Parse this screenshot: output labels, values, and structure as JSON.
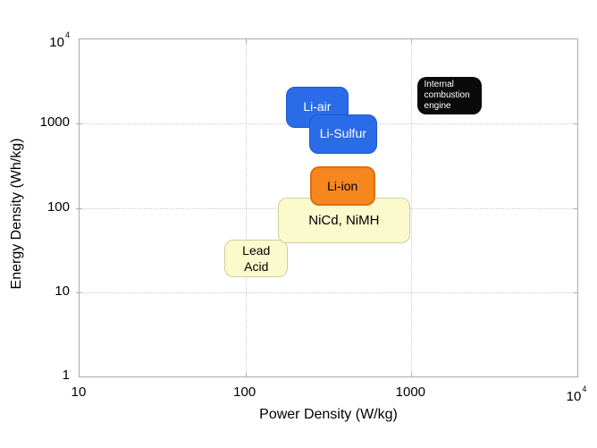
{
  "figure": {
    "background": "#ffffff",
    "axis_color": "#ababab",
    "grid_color": "#cbcbcb",
    "text_color": "#000000"
  },
  "chart_data": {
    "type": "scatter",
    "subtype": "labeled-region-boxes (Ragone plot)",
    "title": "",
    "xlabel": "Power Density (W/kg)",
    "ylabel": "Energy Density (Wh/kg)",
    "x_scale": "log",
    "y_scale": "log",
    "xlim": [
      10,
      10000
    ],
    "ylim": [
      1,
      10000
    ],
    "grid": true,
    "legend": "none",
    "x_ticks": [
      {
        "value": 10,
        "label": "10",
        "grid": false
      },
      {
        "value": 100,
        "label": "100",
        "grid": true
      },
      {
        "value": 1000,
        "label": "1000",
        "grid": true
      },
      {
        "value": 10000,
        "label": "10^4",
        "grid": false
      }
    ],
    "y_ticks": [
      {
        "value": 1,
        "label": "1",
        "grid": false
      },
      {
        "value": 10,
        "label": "10",
        "grid": true
      },
      {
        "value": 100,
        "label": "100",
        "grid": true
      },
      {
        "value": 1000,
        "label": "1000",
        "grid": true
      },
      {
        "value": 10000,
        "label": "10^4",
        "grid": false
      }
    ],
    "series": [
      {
        "id": "lead-acid",
        "lines": [
          "Lead",
          "Acid"
        ],
        "power_range_w_kg": [
          75,
          180
        ],
        "energy_range_wh_kg": [
          15,
          42
        ],
        "fill": "#FAFACD",
        "border": "#CFCF9E",
        "border_width": 1.5,
        "text_color": "#000000",
        "font_size": 14,
        "line_height": 18,
        "text_align": "center"
      },
      {
        "id": "nicd-nimh",
        "lines": [
          "NiCd, NiMH"
        ],
        "power_range_w_kg": [
          157,
          980
        ],
        "energy_range_wh_kg": [
          38,
          132
        ],
        "fill": "#FAFACD",
        "border": "#CFCF9E",
        "border_width": 1.5,
        "text_color": "#000000",
        "font_size": 15,
        "line_height": 18,
        "text_align": "center"
      },
      {
        "id": "li-ion",
        "lines": [
          "Li-ion"
        ],
        "power_range_w_kg": [
          244,
          605
        ],
        "energy_range_wh_kg": [
          106,
          310
        ],
        "fill": "#F6871E",
        "border": "#DD6E12",
        "border_width": 2,
        "text_color": "#000000",
        "font_size": 14,
        "line_height": 17,
        "text_align": "center"
      },
      {
        "id": "li-air",
        "lines": [
          "Li-air"
        ],
        "power_range_w_kg": [
          175,
          418
        ],
        "energy_range_wh_kg": [
          900,
          2760
        ],
        "fill": "#2A6BE8",
        "border": "#1F57CE",
        "border_width": 1,
        "text_color": "#FFFFFF",
        "font_size": 14,
        "line_height": 17,
        "text_align": "center"
      },
      {
        "id": "li-sulfur",
        "lines": [
          "Li-Sulfur"
        ],
        "power_range_w_kg": [
          242,
          620
        ],
        "energy_range_wh_kg": [
          435,
          1300
        ],
        "fill": "#2A6BE8",
        "border": "#1F57CE",
        "border_width": 1,
        "text_color": "#FFFFFF",
        "font_size": 14,
        "line_height": 17,
        "text_align": "center"
      },
      {
        "id": "internal-combustion-engine",
        "lines": [
          "Internal",
          "combustion",
          "engine"
        ],
        "power_range_w_kg": [
          1080,
          2665
        ],
        "energy_range_wh_kg": [
          1270,
          3600
        ],
        "fill": "#0A0A0A",
        "border": "#0A0A0A",
        "border_width": 0,
        "text_color": "#FFFFFF",
        "font_size": 10,
        "line_height": 12,
        "text_align": "left"
      }
    ]
  }
}
